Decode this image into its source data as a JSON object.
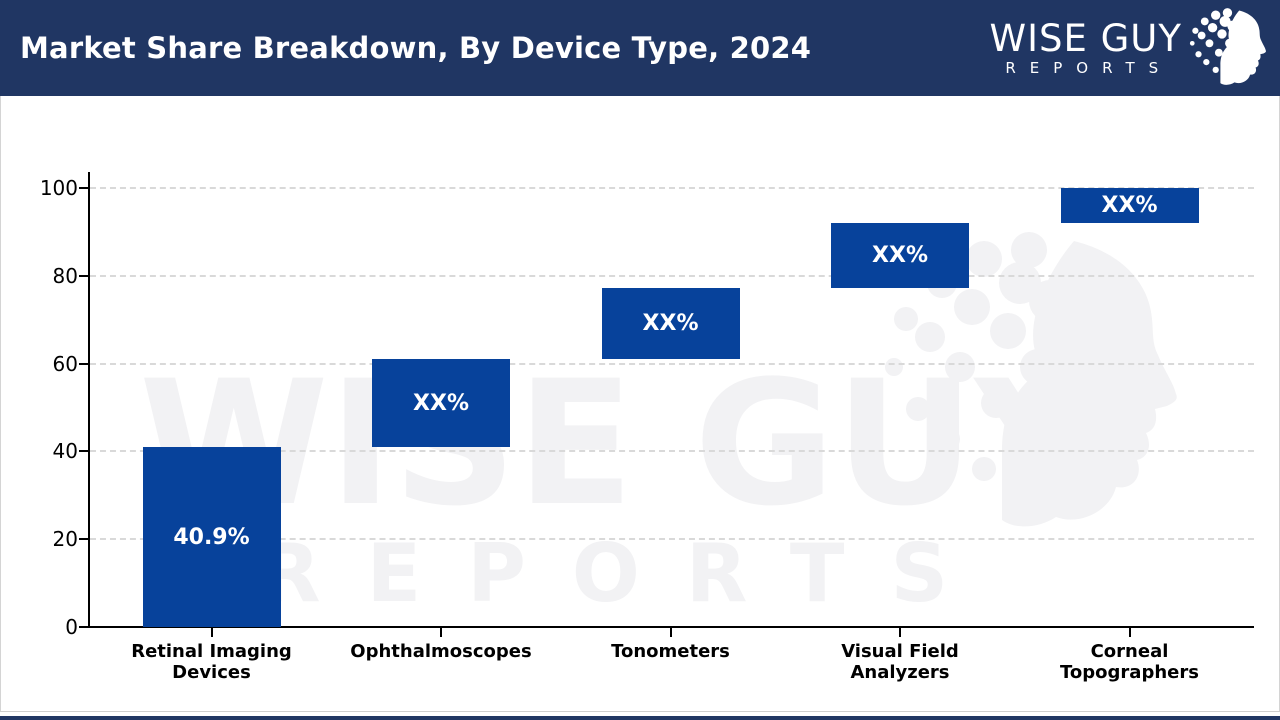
{
  "header": {
    "title": "Market Share Breakdown, By Device Type, 2024",
    "bg_color": "#203663",
    "logo": {
      "wordmark": "WISE GUY",
      "subtext": "REPORTS"
    }
  },
  "watermark": {
    "wordmark": "WISE GUY",
    "subtext": "REPORTS"
  },
  "chart_data": {
    "type": "bar",
    "subtype": "waterfall",
    "title": "Market Share Breakdown, By Device Type, 2024",
    "categories": [
      "Retinal Imaging Devices",
      "Ophthalmoscopes",
      "Tonometers",
      "Visual Field Analyzers",
      "Corneal Topographers"
    ],
    "segments": [
      {
        "category": "Retinal Imaging Devices",
        "category_lines": [
          "Retinal Imaging",
          "Devices"
        ],
        "start": 0,
        "end": 40.9,
        "label": "40.9%"
      },
      {
        "category": "Ophthalmoscopes",
        "category_lines": [
          "Ophthalmoscopes"
        ],
        "start": 40.9,
        "end": 61,
        "label": "XX%"
      },
      {
        "category": "Tonometers",
        "category_lines": [
          "Tonometers"
        ],
        "start": 61,
        "end": 77.2,
        "label": "XX%"
      },
      {
        "category": "Visual Field Analyzers",
        "category_lines": [
          "Visual Field",
          "Analyzers"
        ],
        "start": 77.2,
        "end": 92,
        "label": "XX%"
      },
      {
        "category": "Corneal Topographers",
        "category_lines": [
          "Corneal",
          "Topographers"
        ],
        "start": 92,
        "end": 100,
        "label": "XX%"
      }
    ],
    "y_ticks": [
      0,
      20,
      40,
      60,
      80,
      100
    ],
    "ylim": [
      0,
      100
    ],
    "xlabel": "",
    "ylabel": "",
    "legend": null,
    "grid": "horizontal-dashed",
    "bar_color": "#07429b",
    "value_label_color": "#ffffff",
    "axis_color": "#000000",
    "gridline_color": "#d9d9d9"
  }
}
